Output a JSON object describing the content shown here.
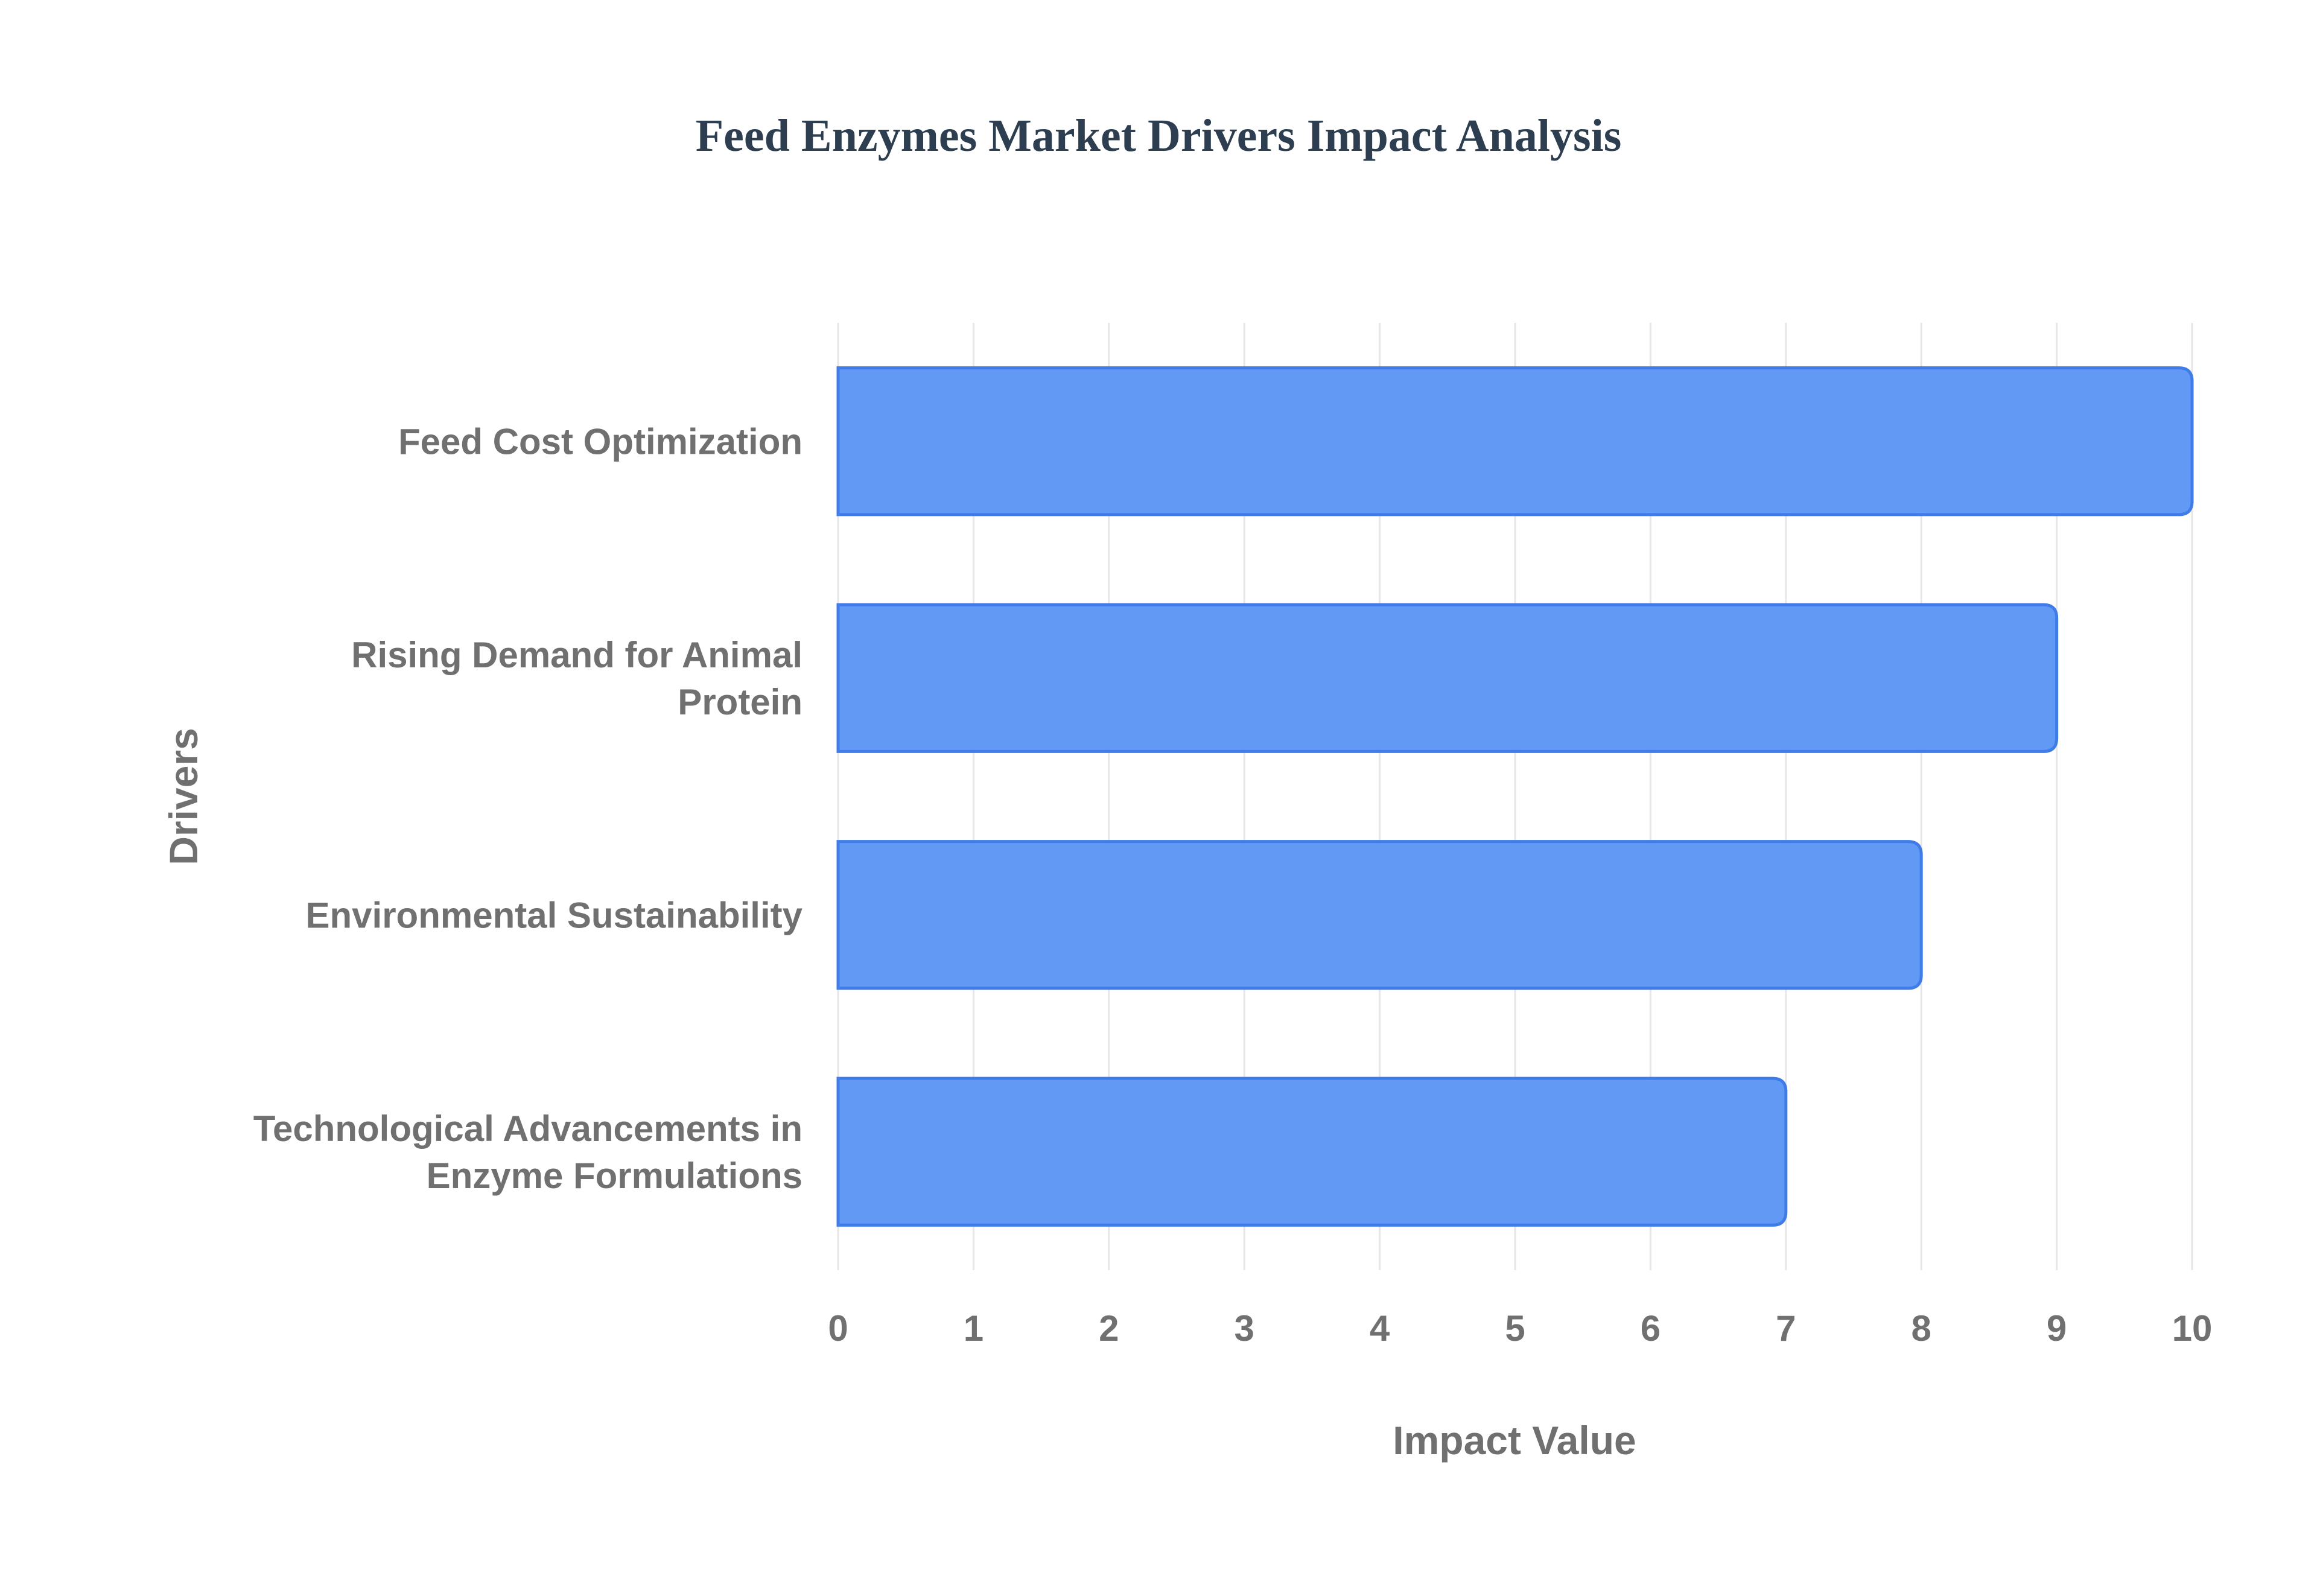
{
  "chart_data": {
    "type": "bar",
    "orientation": "horizontal",
    "title": "Feed Enzymes Market Drivers Impact Analysis",
    "xlabel": "Impact Value",
    "ylabel": "Drivers",
    "categories": [
      [
        "Feed Cost Optimization"
      ],
      [
        "Rising Demand for Animal",
        "Protein"
      ],
      [
        "Environmental Sustainability"
      ],
      [
        "Technological Advancements in",
        "Enzyme Formulations"
      ]
    ],
    "values": [
      10,
      9,
      8,
      7
    ],
    "xlim": [
      0,
      10
    ],
    "xticks": [
      "0",
      "1",
      "2",
      "3",
      "4",
      "5",
      "6",
      "7",
      "8",
      "9",
      "10"
    ],
    "grid": true,
    "legend": "none"
  },
  "colors": {
    "bar_fill": "#6199f5",
    "bar_stroke": "#3f7ce8",
    "title": "#2c3e50",
    "text": "#707070",
    "grid": "#e6e6e6",
    "background": "#ffffff"
  }
}
